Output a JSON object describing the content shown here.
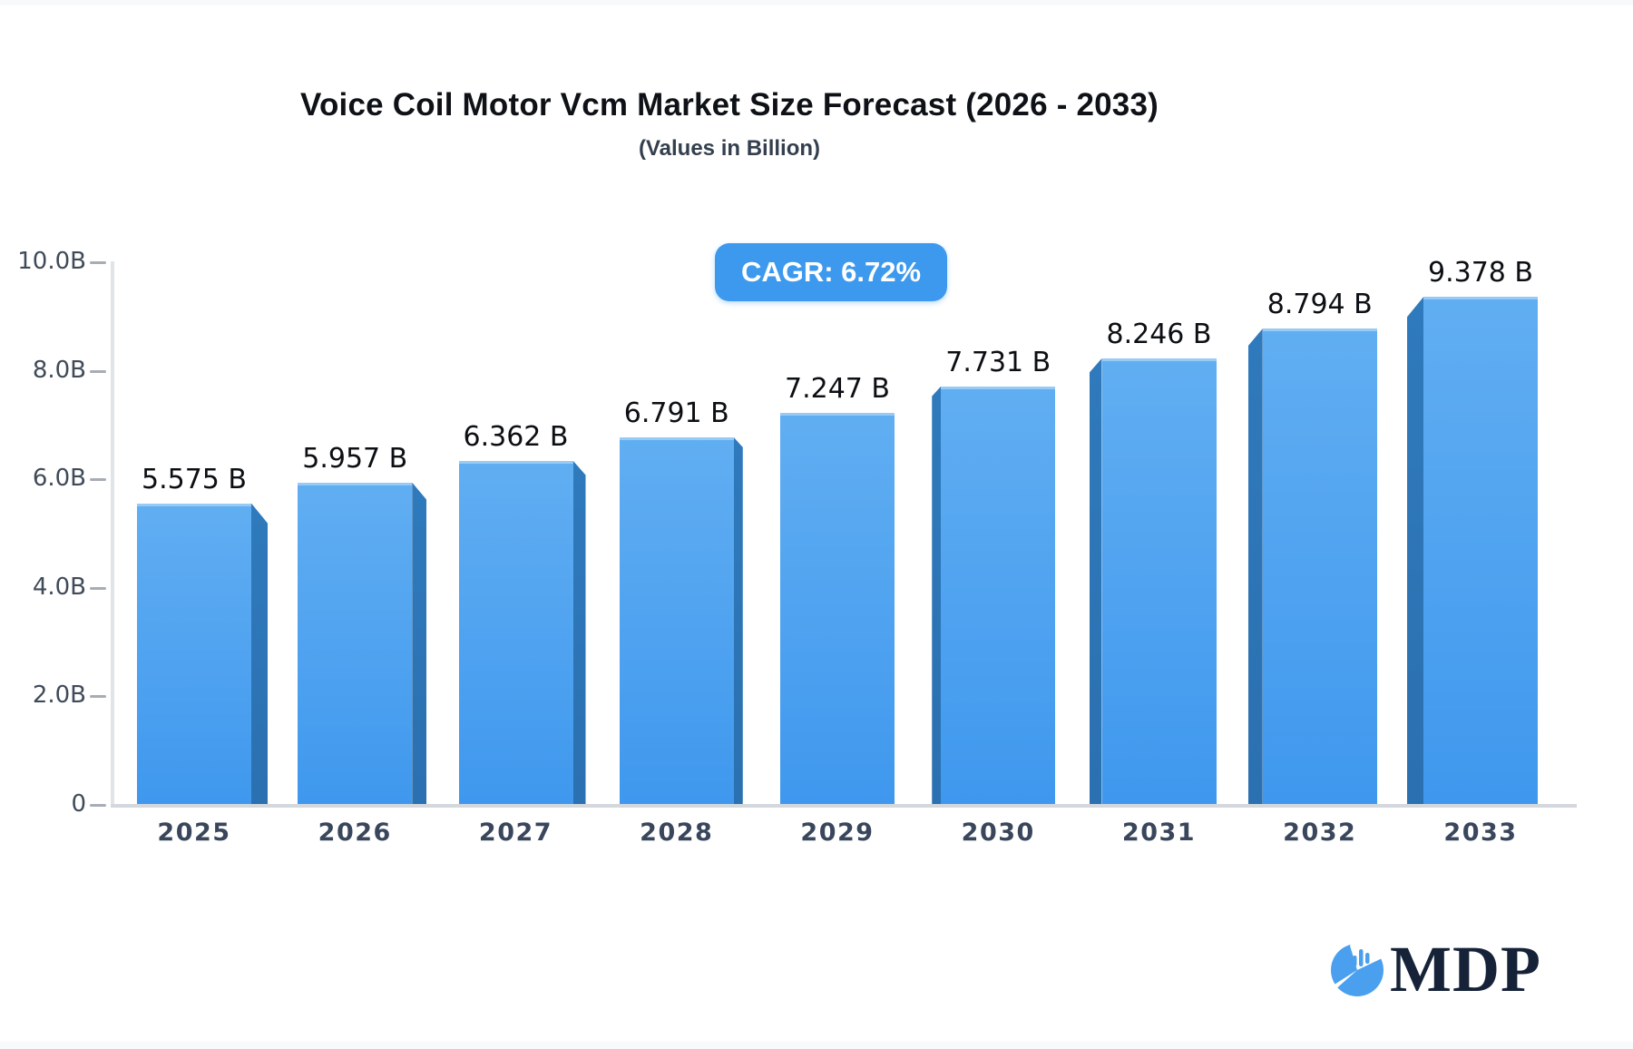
{
  "header": {
    "title": "Voice Coil Motor Vcm Market Size Forecast (2026 - 2033)",
    "subtitle": "(Values in Billion)"
  },
  "badge": {
    "label": "CAGR: 6.72%",
    "background": "#3d99ee",
    "text_color": "#ffffff"
  },
  "chart_data": {
    "type": "bar",
    "title": "Voice Coil Motor Vcm Market Size Forecast (2026 - 2033)",
    "subtitle": "(Values in Billion)",
    "categories": [
      "2025",
      "2026",
      "2027",
      "2028",
      "2029",
      "2030",
      "2031",
      "2032",
      "2033"
    ],
    "values": [
      5.575,
      5.957,
      6.362,
      6.791,
      7.247,
      7.731,
      8.246,
      8.794,
      9.378
    ],
    "value_labels": [
      "5.575 B",
      "5.957 B",
      "6.362 B",
      "6.791 B",
      "7.247 B",
      "7.731 B",
      "8.246 B",
      "8.794 B",
      "9.378 B"
    ],
    "xlabel": "",
    "ylabel": "",
    "ylim": [
      0,
      10
    ],
    "yticks": [
      {
        "value": 0,
        "label": "0"
      },
      {
        "value": 2,
        "label": "2.0B"
      },
      {
        "value": 4,
        "label": "4.0B"
      },
      {
        "value": 6,
        "label": "6.0B"
      },
      {
        "value": 8,
        "label": "8.0B"
      },
      {
        "value": 10,
        "label": "10.0B"
      }
    ],
    "grid": false,
    "legend": "none",
    "bar_color_top": "#61aef2",
    "bar_color_bottom": "#3f98ee",
    "bar_side_color_top": "#2f7abc",
    "bar_side_color_bottom": "#2b70b0"
  },
  "logo": {
    "text": "MDP",
    "icon": "pie-chart-icon",
    "text_color": "#152238",
    "icon_color": "#4aa0ee"
  }
}
